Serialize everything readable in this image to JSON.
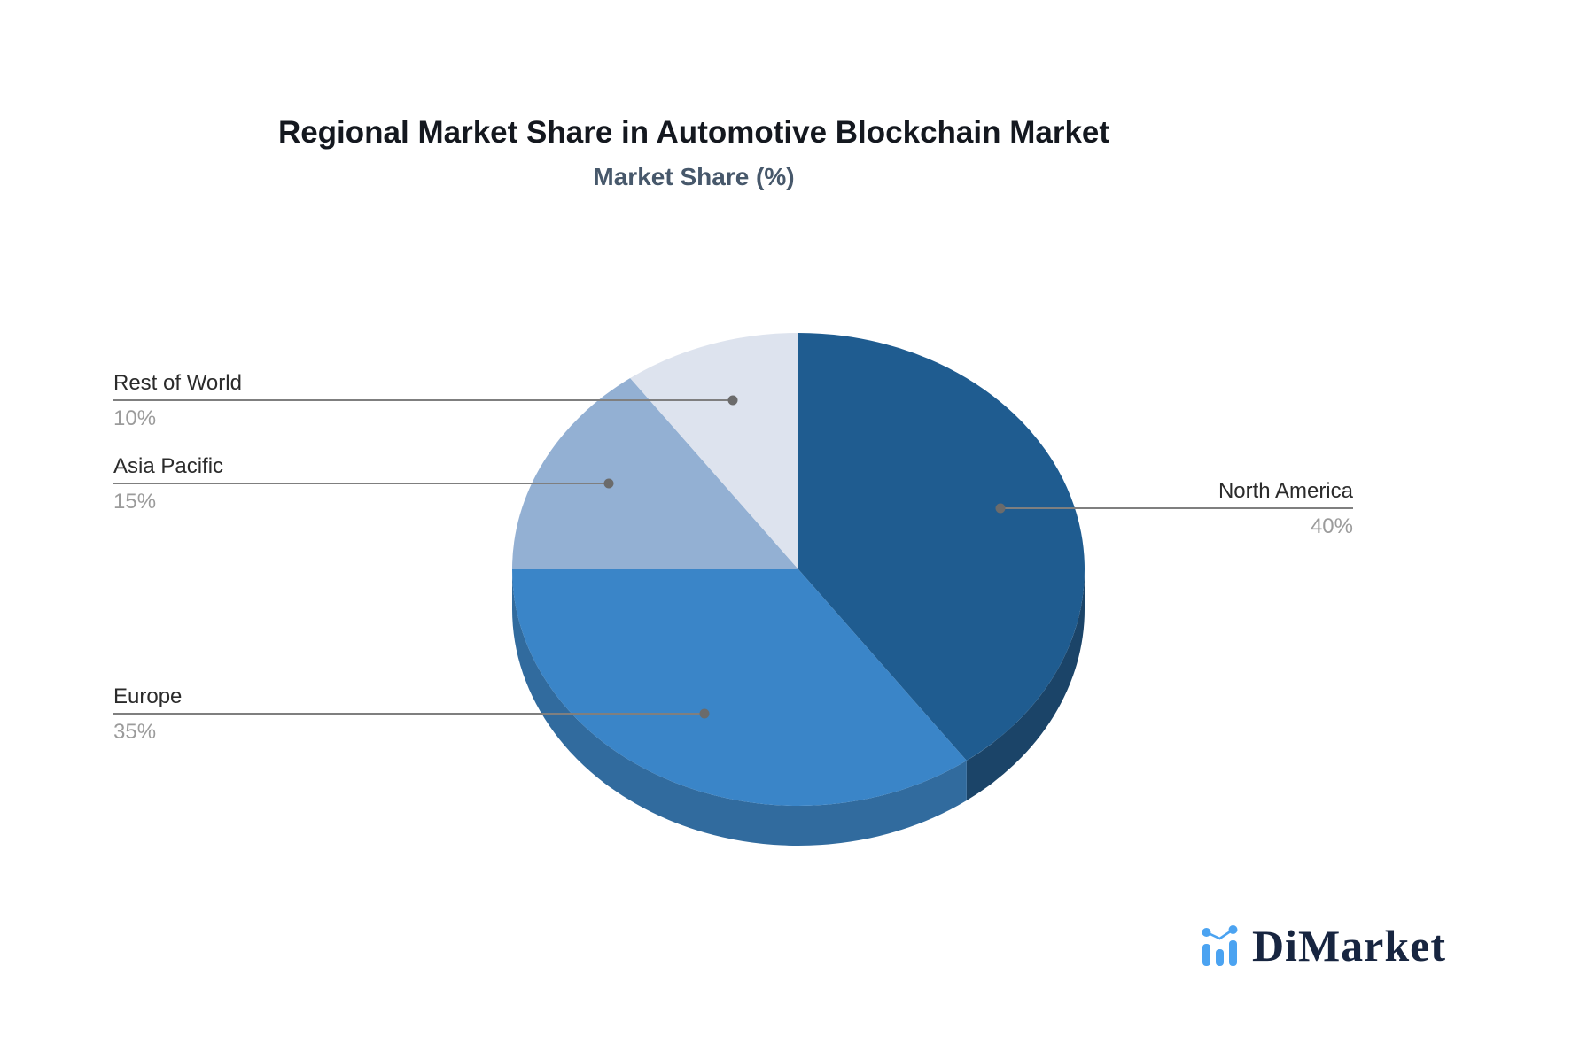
{
  "title": "Regional Market Share in Automotive Blockchain Market",
  "subtitle": "Market Share (%)",
  "chart_data": {
    "type": "pie",
    "title": "Regional Market Share in Automotive Blockchain Market",
    "subtitle": "Market Share (%)",
    "unit": "%",
    "style": "3d-pie",
    "direction": "clockwise",
    "start_angle_deg": 0,
    "categories": [
      "North America",
      "Europe",
      "Asia Pacific",
      "Rest of World"
    ],
    "values": [
      40,
      35,
      15,
      10
    ],
    "slice_colors": [
      "#1f5c90",
      "#3a85c8",
      "#93b0d3",
      "#dde3ee"
    ],
    "slice_side_colors": [
      "#1b4468",
      "#316b9e",
      "#6d8cb0",
      "#b9c3d6"
    ],
    "legend_position": "leader-line-annotations"
  },
  "annotations": [
    {
      "label": "Rest of World",
      "value": "10%"
    },
    {
      "label": "Asia Pacific",
      "value": "15%"
    },
    {
      "label": "Europe",
      "value": "35%"
    },
    {
      "label": "North America",
      "value": "40%"
    }
  ],
  "leader": {
    "line_color": "#7f7f7f",
    "dot_color": "#6b6b6b"
  },
  "logo": {
    "text": "DiMarket",
    "icon": "bar-line-chart-icon",
    "icon_color": "#4ba3f1",
    "text_color": "#172540"
  }
}
